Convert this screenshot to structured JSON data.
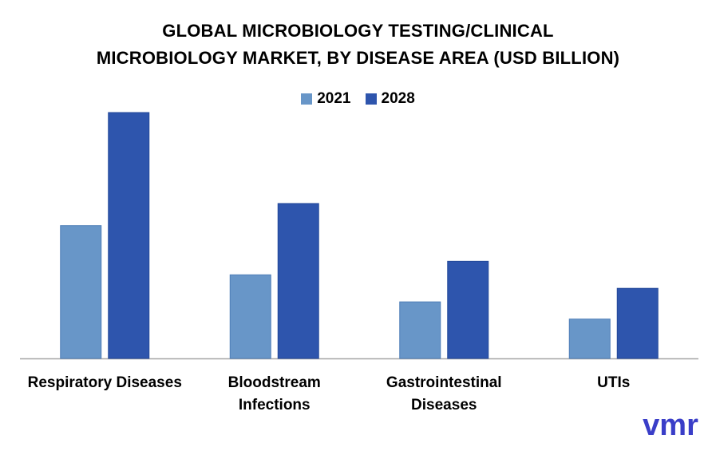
{
  "title_line1": "GLOBAL MICROBIOLOGY TESTING/CLINICAL",
  "title_line2": "MICROBIOLOGY MARKET, BY DISEASE AREA (USD BILLION)",
  "logo_text": "vmr",
  "colors": {
    "s2021": "#6896c8",
    "s2028": "#2e55ad",
    "logo": "#3a3ec8",
    "axis": "#a6a6a6"
  },
  "chart_data": {
    "type": "bar",
    "title": "GLOBAL MICROBIOLOGY TESTING/CLINICAL MICROBIOLOGY MARKET, BY DISEASE AREA (USD BILLION)",
    "categories": [
      "Respiratory Diseases",
      "Bloodstream Infections",
      "Gastrointestinal Diseases",
      "UTIs"
    ],
    "category_lines": [
      [
        "Respiratory Diseases"
      ],
      [
        "Bloodstream",
        "Infections"
      ],
      [
        "Gastrointestinal",
        "Diseases"
      ],
      [
        "UTIs"
      ]
    ],
    "series": [
      {
        "name": "2021",
        "values": [
          5.4,
          3.4,
          2.3,
          1.6
        ]
      },
      {
        "name": "2028",
        "values": [
          10.0,
          6.3,
          3.95,
          2.85
        ]
      }
    ],
    "ylim": [
      0,
      10
    ],
    "xlabel": "",
    "ylabel": "",
    "grid": false,
    "legend": "top-center"
  }
}
